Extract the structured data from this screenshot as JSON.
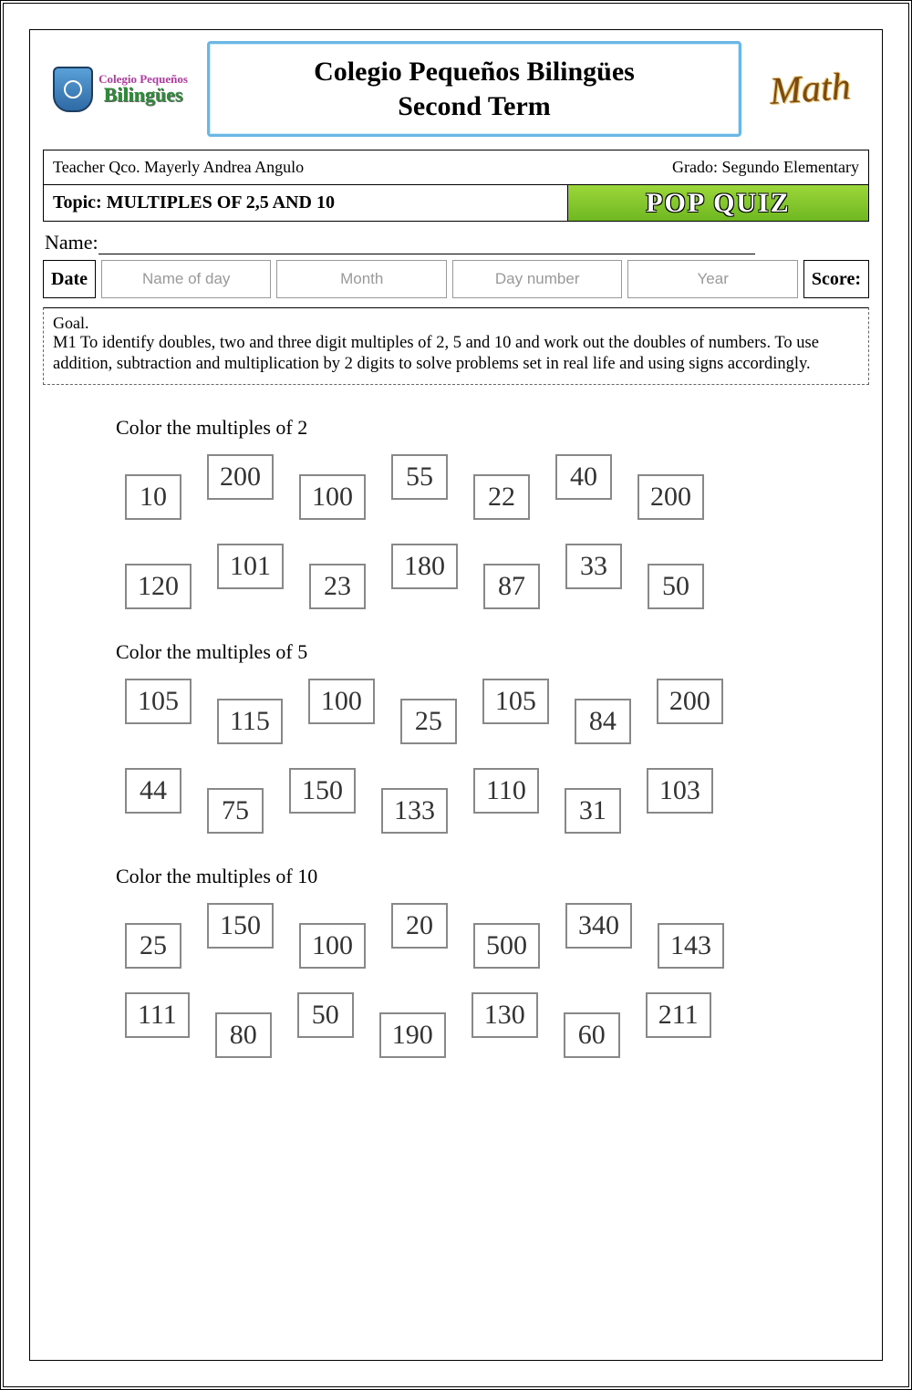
{
  "header": {
    "logo_line1": "Colegio Pequeños",
    "logo_line2": "Bilingües",
    "title_line1": "Colegio Pequeños Bilingües",
    "title_line2": "Second Term",
    "math_label": "Math"
  },
  "info": {
    "teacher": "Teacher Qco. Mayerly Andrea Angulo",
    "grade": "Grado:  Segundo Elementary",
    "topic": "Topic: MULTIPLES OF 2,5 AND 10",
    "quiz_label": "POP QUIZ"
  },
  "name": {
    "label": "Name:"
  },
  "date": {
    "label": "Date",
    "cells": [
      "Name of day",
      "Month",
      "Day number",
      "Year"
    ],
    "score_label": "Score:"
  },
  "goal": {
    "label": "Goal.",
    "text": "M1 To identify doubles, two and three digit multiples of 2, 5 and 10 and work out the doubles of numbers. To use addition, subtraction and multiplication by 2 digits to solve problems set in real life and using signs accordingly."
  },
  "sections": {
    "s2": {
      "title": "Color the multiples of 2",
      "row1": [
        {
          "v": "10",
          "pos": "dn"
        },
        {
          "v": "200",
          "pos": "up"
        },
        {
          "v": "100",
          "pos": "dn"
        },
        {
          "v": "55",
          "pos": "up"
        },
        {
          "v": "22",
          "pos": "dn"
        },
        {
          "v": "40",
          "pos": "up"
        },
        {
          "v": "200",
          "pos": "dn"
        }
      ],
      "row2": [
        {
          "v": "120",
          "pos": "dn"
        },
        {
          "v": "101",
          "pos": "up"
        },
        {
          "v": "23",
          "pos": "dn"
        },
        {
          "v": "180",
          "pos": "up"
        },
        {
          "v": "87",
          "pos": "dn"
        },
        {
          "v": "33",
          "pos": "up"
        },
        {
          "v": "50",
          "pos": "dn"
        }
      ]
    },
    "s5": {
      "title": "Color the multiples of 5",
      "row1": [
        {
          "v": "105",
          "pos": "up"
        },
        {
          "v": "115",
          "pos": "dn"
        },
        {
          "v": "100",
          "pos": "up"
        },
        {
          "v": "25",
          "pos": "dn"
        },
        {
          "v": "105",
          "pos": "up"
        },
        {
          "v": "84",
          "pos": "dn"
        },
        {
          "v": "200",
          "pos": "up"
        }
      ],
      "row2": [
        {
          "v": "44",
          "pos": "up"
        },
        {
          "v": "75",
          "pos": "dn"
        },
        {
          "v": "150",
          "pos": "up"
        },
        {
          "v": "133",
          "pos": "dn"
        },
        {
          "v": "110",
          "pos": "up"
        },
        {
          "v": "31",
          "pos": "dn"
        },
        {
          "v": "103",
          "pos": "up"
        }
      ]
    },
    "s10": {
      "title": "Color the multiples of 10",
      "row1": [
        {
          "v": "25",
          "pos": "dn"
        },
        {
          "v": "150",
          "pos": "up"
        },
        {
          "v": "100",
          "pos": "dn"
        },
        {
          "v": "20",
          "pos": "up"
        },
        {
          "v": "500",
          "pos": "dn"
        },
        {
          "v": "340",
          "pos": "up"
        },
        {
          "v": "143",
          "pos": "dn"
        }
      ],
      "row2": [
        {
          "v": "111",
          "pos": "up"
        },
        {
          "v": "80",
          "pos": "dn"
        },
        {
          "v": "50",
          "pos": "up"
        },
        {
          "v": "190",
          "pos": "dn"
        },
        {
          "v": "130",
          "pos": "up"
        },
        {
          "v": "60",
          "pos": "dn"
        },
        {
          "v": "211",
          "pos": "up"
        }
      ]
    }
  },
  "colors": {
    "border": "#000000",
    "title_border": "#6ab7e6",
    "quiz_bg_top": "#9cd63a",
    "quiz_bg_bottom": "#6fb821",
    "box_border": "#888888",
    "placeholder": "#999999"
  }
}
